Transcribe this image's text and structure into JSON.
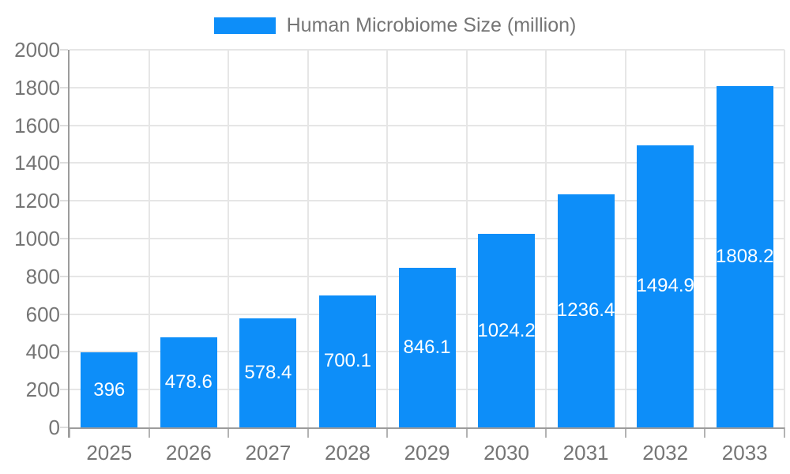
{
  "chart_data": {
    "type": "bar",
    "title": "",
    "legend": "Human Microbiome Size (million)",
    "legend_position": "top-center",
    "categories": [
      "2025",
      "2026",
      "2027",
      "2028",
      "2029",
      "2030",
      "2031",
      "2032",
      "2033"
    ],
    "series": [
      {
        "name": "Human Microbiome Size (million)",
        "values": [
          396,
          478.6,
          578.4,
          700.1,
          846.1,
          1024.2,
          1236.4,
          1494.9,
          1808.2
        ]
      }
    ],
    "bar_labels": [
      "396",
      "478.6",
      "578.4",
      "700.1",
      "846.1",
      "1024.2",
      "1236.4",
      "1494.9",
      "1808.2"
    ],
    "xlabel": "",
    "ylabel": "",
    "ylim": [
      0,
      2000
    ],
    "ytick_step": 200,
    "ytick_labels": [
      "0",
      "200",
      "400",
      "600",
      "800",
      "1000",
      "1200",
      "1400",
      "1600",
      "1800",
      "2000"
    ],
    "grid": true,
    "colors": {
      "bar": "#0d8ef9",
      "axis": "#9c9c9c",
      "gridline": "#e6e6e6",
      "tick_y": "#dedede",
      "tick_x": "#b3b3b3",
      "label_text": "#757575",
      "bar_label_text": "#ffffff",
      "background": "#ffffff"
    }
  }
}
